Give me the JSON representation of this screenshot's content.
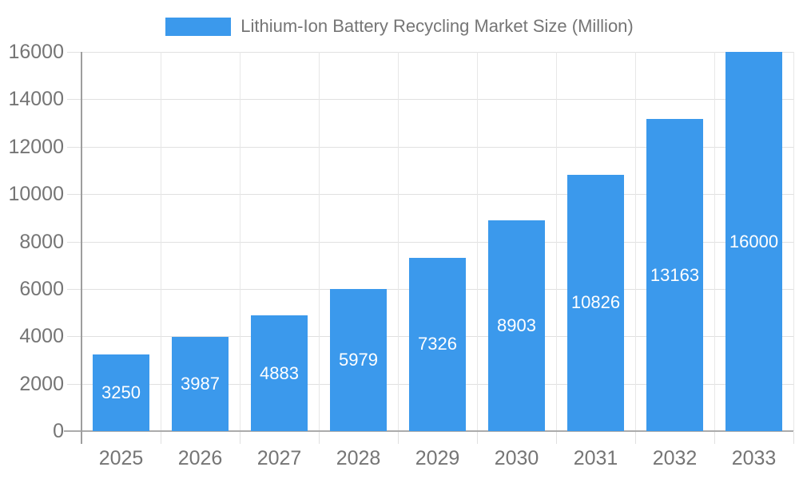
{
  "chart_data": {
    "type": "bar",
    "title": "Lithium-Ion Battery Recycling Market Size (Million)",
    "legend_entries": [
      "Lithium-Ion Battery Recycling Market Size (Million)"
    ],
    "legend_position": "top-center",
    "categories": [
      "2025",
      "2026",
      "2027",
      "2028",
      "2029",
      "2030",
      "2031",
      "2032",
      "2033"
    ],
    "values": [
      3250,
      3987,
      4883,
      5979,
      7326,
      8903,
      10826,
      13163,
      16000
    ],
    "xlabel": "",
    "ylabel": "",
    "ylim": [
      0,
      16000
    ],
    "yticks": [
      0,
      2000,
      4000,
      6000,
      8000,
      10000,
      12000,
      14000,
      16000
    ],
    "grid": true,
    "colors": {
      "bar": "#3b99ec",
      "value_label": "#ffffff",
      "axis_text": "#757575",
      "legend_text": "#757575",
      "gridline_horizontal": "#e0e0e0",
      "gridline_vertical": "#e7e7e7",
      "y_axis_line": "#9e9e9e",
      "x_axis_line": "#ababab"
    }
  }
}
